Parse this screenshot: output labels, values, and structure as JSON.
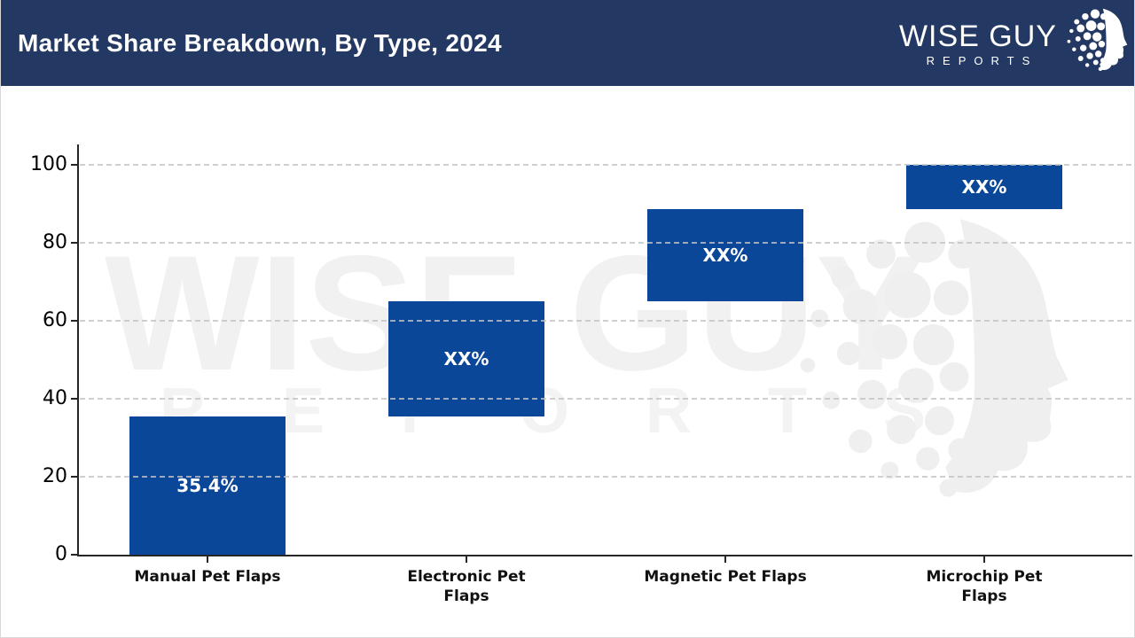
{
  "header": {
    "title": "Market Share Breakdown, By Type, 2024",
    "bg_color": "#233963",
    "logo": {
      "line1": "WISE GUY",
      "line2": "REPORTS"
    }
  },
  "watermark": {
    "line1": "WISE GUY",
    "line2": "REPORTS"
  },
  "chart_data": {
    "type": "bar",
    "subtype": "waterfall (floating segment bars)",
    "title": "Market Share Breakdown, By Type, 2024",
    "categories": [
      "Manual Pet Flaps",
      "Electronic Pet Flaps",
      "Magnetic Pet Flaps",
      "Microchip Pet Flaps"
    ],
    "bars": [
      {
        "category": "Manual Pet Flaps",
        "category_lines": [
          "Manual Pet Flaps"
        ],
        "start": 0,
        "end": 35.4,
        "label": "35.4%"
      },
      {
        "category": "Electronic Pet Flaps",
        "category_lines": [
          "Electronic Pet",
          "Flaps"
        ],
        "start": 35.4,
        "end": 64.9,
        "label": "XX%"
      },
      {
        "category": "Magnetic Pet Flaps",
        "category_lines": [
          "Magnetic Pet Flaps"
        ],
        "start": 64.9,
        "end": 88.6,
        "label": "XX%"
      },
      {
        "category": "Microchip Pet Flaps",
        "category_lines": [
          "Microchip Pet",
          "Flaps"
        ],
        "start": 88.6,
        "end": 100,
        "label": "XX%"
      }
    ],
    "y_ticks": [
      0,
      20,
      40,
      60,
      80,
      100
    ],
    "ylim": [
      0,
      105
    ],
    "grid": "horizontal dashed light-gray, drawn over bars",
    "legend": "none",
    "bar_color": "#0b4799",
    "bar_label_color": "#ffffff",
    "xlabel": "",
    "ylabel": ""
  }
}
